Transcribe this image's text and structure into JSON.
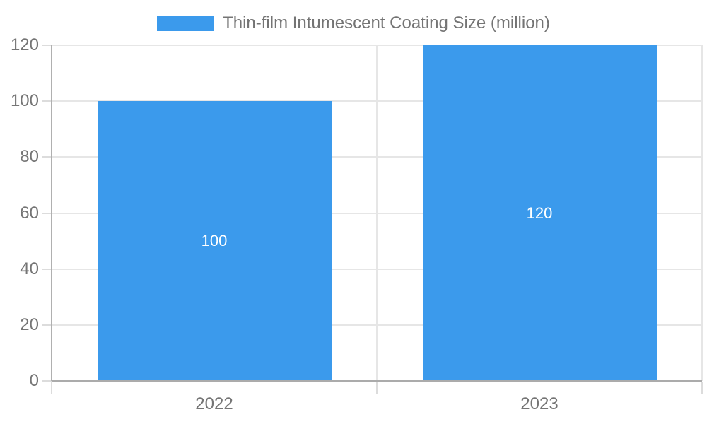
{
  "legend": {
    "label": "Thin-film Intumescent Coating Size (million)"
  },
  "chart_data": {
    "type": "bar",
    "title": "Thin-film Intumescent Coating Size (million)",
    "categories": [
      "2022",
      "2023"
    ],
    "values": [
      100,
      120
    ],
    "data_labels": [
      "100",
      "120"
    ],
    "series": [
      {
        "name": "Thin-film Intumescent Coating Size (million)",
        "values": [
          100,
          120
        ]
      }
    ],
    "ylim": [
      0,
      120
    ],
    "yticks": [
      0,
      20,
      40,
      60,
      80,
      100,
      120
    ],
    "ytick_labels": [
      "0",
      "20",
      "40",
      "60",
      "80",
      "100",
      "120"
    ],
    "xlabel": "",
    "ylabel": "",
    "grid": true,
    "legend_position": "top",
    "colors": {
      "bar": "#3B9AEC",
      "data_label": "#ffffff",
      "axis_label": "#757575",
      "legend_text": "#747474",
      "gridline": "#e6e6e6",
      "axis_line": "#b0b0b0",
      "baseline": "#ababab",
      "tick": "#dcdcdc"
    }
  }
}
